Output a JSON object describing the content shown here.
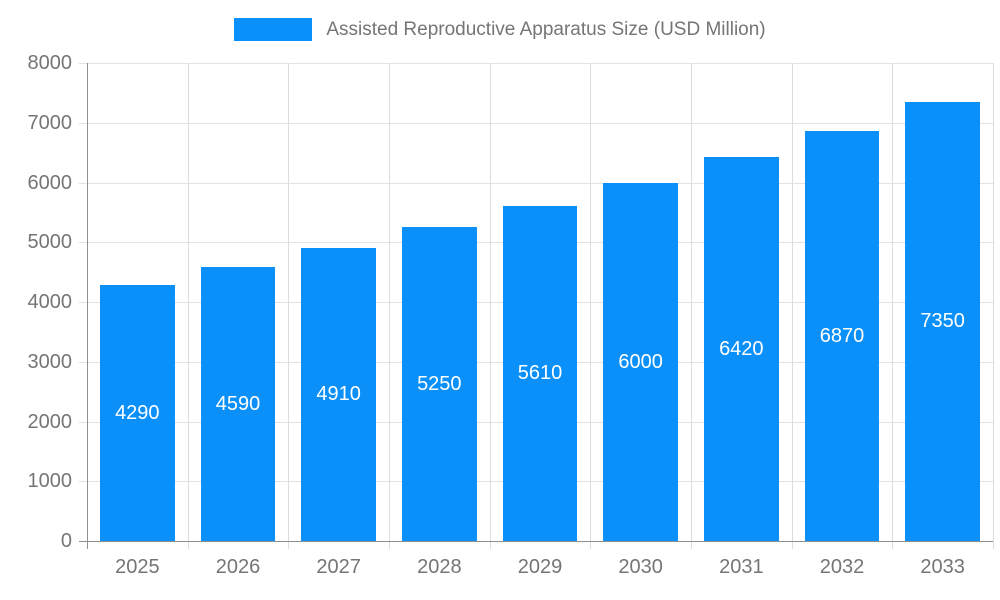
{
  "legend": {
    "position": "top",
    "swatch_icon": "legend-swatch",
    "swatch_color": "#0b90f9"
  },
  "chart_data": {
    "type": "bar",
    "title": "Assisted Reproductive Apparatus Size (USD Million)",
    "categories": [
      "2025",
      "2026",
      "2027",
      "2028",
      "2029",
      "2030",
      "2031",
      "2032",
      "2033"
    ],
    "values": [
      4290,
      4590,
      4910,
      5250,
      5610,
      6000,
      6420,
      6870,
      7350
    ],
    "value_labels": [
      "4290",
      "4590",
      "4910",
      "5250",
      "5610",
      "6000",
      "6420",
      "6870",
      "7350"
    ],
    "xlabel": "",
    "ylabel": "",
    "ylim": [
      0,
      8000
    ],
    "ytick_step": 1000,
    "yticks": [
      "0",
      "1000",
      "2000",
      "3000",
      "4000",
      "5000",
      "6000",
      "7000",
      "8000"
    ],
    "grid": true,
    "legend_position": "top",
    "value_label_position": "inside-middle",
    "bar_color": "#0b90f9",
    "value_label_color": "#ffffff",
    "axis_text_color": "#757575",
    "axis_line_color": "#8f8f8f",
    "grid_line_color": "#e2e2e2",
    "background_color": "#ffffff"
  }
}
